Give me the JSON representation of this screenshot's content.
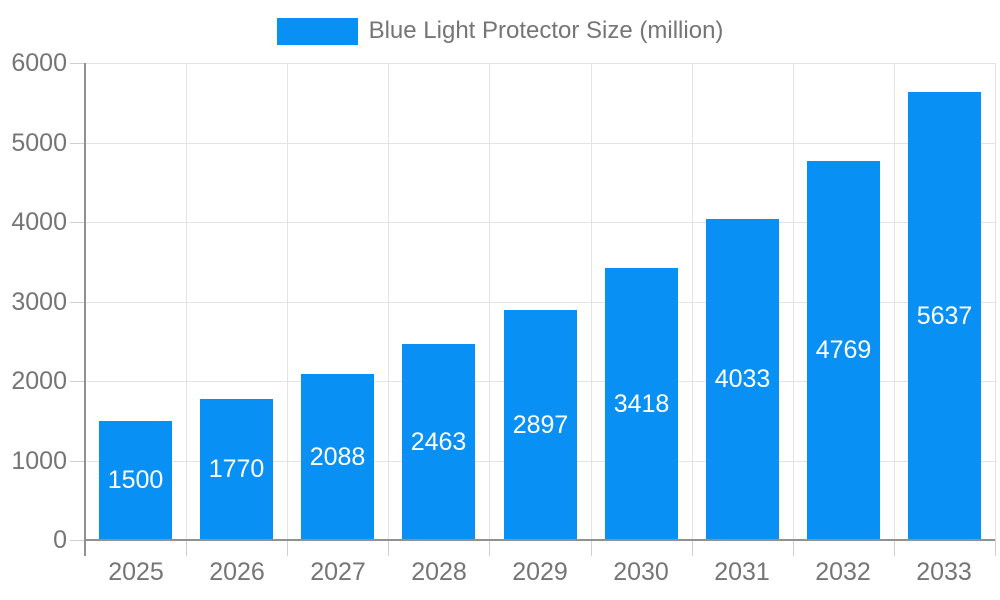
{
  "legend": {
    "label": "Blue Light Protector Size (million)"
  },
  "chart_data": {
    "type": "bar",
    "title": "Blue Light Protector Size (million)",
    "categories": [
      "2025",
      "2026",
      "2027",
      "2028",
      "2029",
      "2030",
      "2031",
      "2032",
      "2033"
    ],
    "values": [
      1500,
      1770,
      2088,
      2463,
      2897,
      3418,
      4033,
      4769,
      5637
    ],
    "series": [
      {
        "name": "Blue Light Protector Size (million)",
        "values": [
          1500,
          1770,
          2088,
          2463,
          2897,
          3418,
          4033,
          4769,
          5637
        ]
      }
    ],
    "value_labels_shown": true,
    "value_label_position": "inside-center",
    "xlabel": "",
    "ylabel": "",
    "ylim": [
      0,
      6000
    ],
    "yticks": [
      0,
      1000,
      2000,
      3000,
      4000,
      5000,
      6000
    ],
    "grid": true,
    "legend_position": "top-center"
  },
  "style": {
    "bar_color": "#0990F5",
    "value_label_color": "#FFFFFF",
    "axis_label_color": "#757575",
    "axis_line_color": "#919191",
    "gridline_color": "#E3E3E3",
    "tick_color": "#CFCFCF",
    "background_color": "#FFFFFF"
  }
}
